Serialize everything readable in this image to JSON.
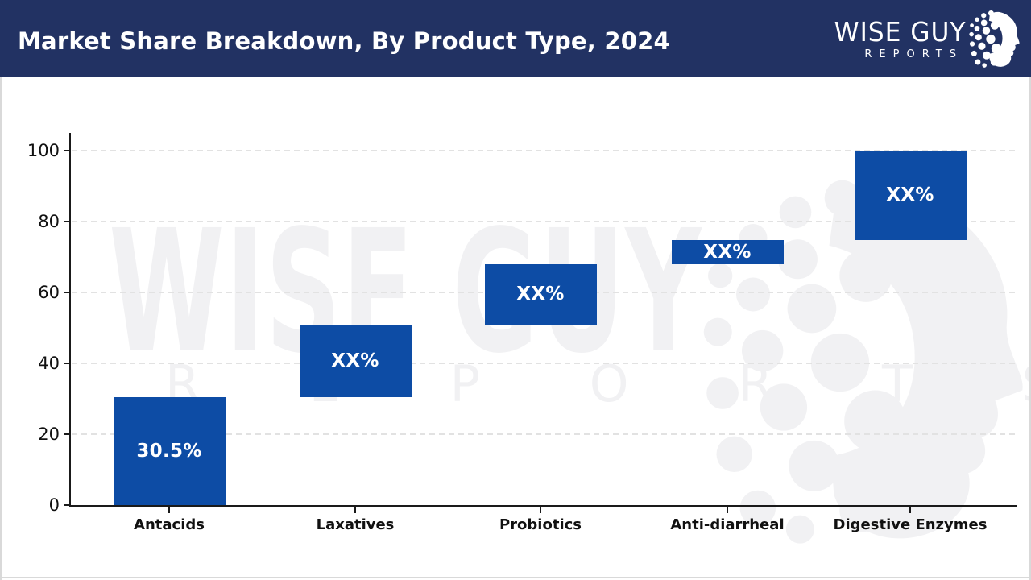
{
  "header": {
    "title": "Market Share Breakdown, By Product Type, 2024",
    "logo": {
      "primary": "WISE GUY",
      "secondary": "REPORTS"
    }
  },
  "watermark": {
    "primary": "WISE GUY",
    "secondary": "R E P O R T S"
  },
  "colors": {
    "header_bg": "#223263",
    "bar": "#0d4ca5",
    "bar_label": "#ffffff",
    "axis": "#1a1a1a",
    "grid": "#e2e2e2",
    "watermark": "#f1f1f3",
    "frame": "#d9d9d9"
  },
  "chart_data": {
    "type": "bar",
    "subtype": "stacked-waterfall (floating market-share segments)",
    "title": "Market Share Breakdown, By Product Type, 2024",
    "categories": [
      "Antacids",
      "Laxatives",
      "Probiotics",
      "Anti-diarrheal",
      "Digestive Enzymes"
    ],
    "segments": [
      {
        "category": "Antacids",
        "start": 0,
        "end": 30.5,
        "label": "30.5%"
      },
      {
        "category": "Laxatives",
        "start": 30.5,
        "end": 51,
        "label": "XX%"
      },
      {
        "category": "Probiotics",
        "start": 51,
        "end": 68,
        "label": "XX%"
      },
      {
        "category": "Anti-diarrheal",
        "start": 68,
        "end": 74.8,
        "label": "XX%"
      },
      {
        "category": "Digestive Enzymes",
        "start": 74.8,
        "end": 100,
        "label": "XX%"
      }
    ],
    "yticks": [
      0,
      20,
      40,
      60,
      80,
      100
    ],
    "ylim": [
      0,
      105
    ],
    "xlabel": "",
    "ylabel": "",
    "grid": "horizontal dashed",
    "legend": "none"
  }
}
